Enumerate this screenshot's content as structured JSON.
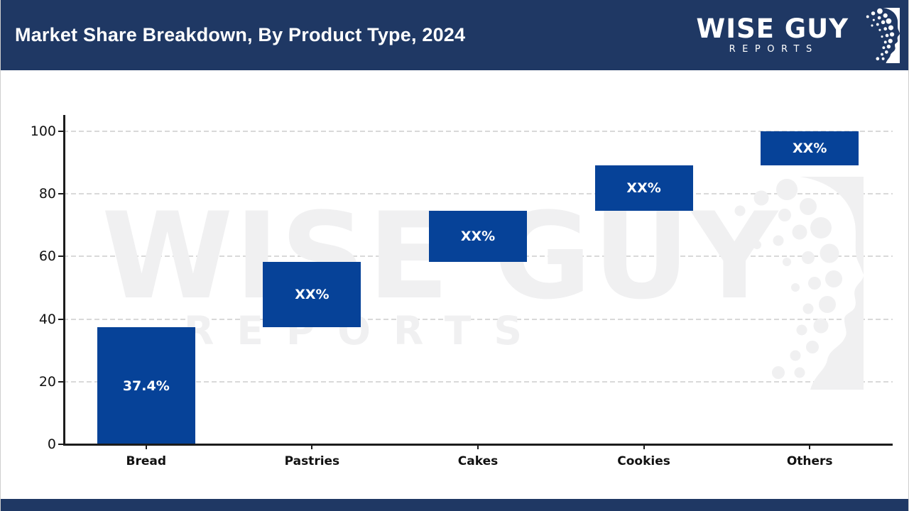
{
  "header": {
    "title": "Market Share Breakdown, By Product Type, 2024",
    "logo": {
      "line1": "WISE GUY",
      "line2": "REPORTS"
    }
  },
  "watermark": {
    "line1": "WISE GUY",
    "line2": "REPORTS"
  },
  "colors": {
    "header_navy": "#1f3864",
    "footer_navy": "#1f3864",
    "bar_blue": "#064298",
    "gridline": "#d9d9d9",
    "axis": "#1c1c1c",
    "watermark": "#f0f0f1",
    "bar_label": "#ffffff"
  },
  "chart_data": {
    "type": "bar",
    "subtype": "waterfall",
    "title": "Market Share Breakdown, By Product Type, 2024",
    "categories": [
      "Bread",
      "Pastries",
      "Cakes",
      "Cookies",
      "Others"
    ],
    "segments": [
      {
        "category": "Bread",
        "start": 0,
        "end": 37.4,
        "value": 37.4,
        "label": "37.4%"
      },
      {
        "category": "Pastries",
        "start": 37.4,
        "end": 58.3,
        "value": 20.9,
        "label": "XX%"
      },
      {
        "category": "Cakes",
        "start": 58.3,
        "end": 74.6,
        "value": 16.3,
        "label": "XX%"
      },
      {
        "category": "Cookies",
        "start": 74.6,
        "end": 89.1,
        "value": 14.5,
        "label": "XX%"
      },
      {
        "category": "Others",
        "start": 89.1,
        "end": 100,
        "value": 10.9,
        "label": "XX%"
      }
    ],
    "xlabel": "",
    "ylabel": "",
    "yticks": [
      0,
      20,
      40,
      60,
      80,
      100
    ],
    "ylim": [
      0,
      105
    ],
    "grid": "horizontal-dashed",
    "legend": "none",
    "bar_color": "#064298",
    "label_color": "#ffffff"
  }
}
